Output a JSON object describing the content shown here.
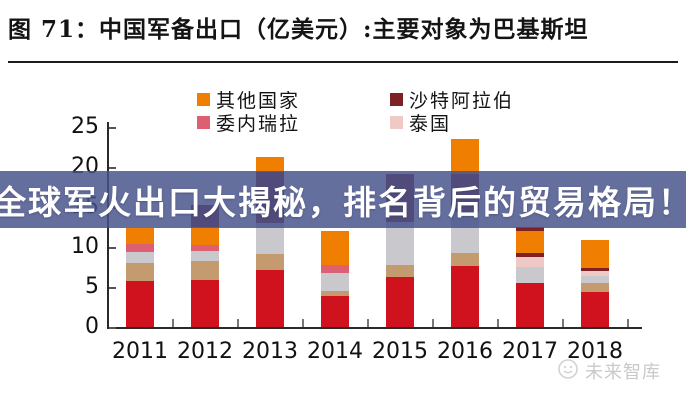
{
  "figure": {
    "title": "图 71：中国军备出口（亿美元）:主要对象为巴基斯坦"
  },
  "overlay": {
    "text": "全球军火出口大揭秘，排名背后的贸易格局！",
    "bg_color": "#48538B",
    "bg_opacity": 0.84,
    "text_color": "#FFFFFF"
  },
  "watermark": {
    "text": "未来智库",
    "color": "#C9C9C9",
    "logo_icon": "smiley-face-icon"
  },
  "chart_data": {
    "type": "bar",
    "stacked": true,
    "title": "中国军备出口（亿美元）",
    "xlabel": "",
    "ylabel": "",
    "ylim": [
      0,
      25
    ],
    "yticks": [
      0,
      5,
      10,
      15,
      20,
      25
    ],
    "grid": false,
    "legend_position": "top",
    "categories": [
      "2011",
      "2012",
      "2013",
      "2014",
      "2015",
      "2016",
      "2017",
      "2018"
    ],
    "colors": {
      "red": "#D0121E",
      "tan": "#C49B6E",
      "gray": "#C9C9CD",
      "rose": "#DD5F72",
      "lightpink": "#EFC9C5",
      "darkred": "#7D2125",
      "orange": "#F07E00"
    },
    "legend": [
      {
        "key": "orange",
        "label": "其他国家"
      },
      {
        "key": "darkred",
        "label": "沙特阿拉伯"
      },
      {
        "key": "rose",
        "label": "委内瑞拉"
      },
      {
        "key": "lightpink",
        "label": "泰国"
      }
    ],
    "bars": [
      {
        "year": "2011",
        "total": 12.4,
        "segments": [
          [
            "red",
            5.7
          ],
          [
            "tan",
            2.3
          ],
          [
            "gray",
            1.4
          ],
          [
            "rose",
            1.0
          ],
          [
            "orange",
            2.0
          ]
        ]
      },
      {
        "year": "2012",
        "total": 15.3,
        "segments": [
          [
            "red",
            5.9
          ],
          [
            "tan",
            2.3
          ],
          [
            "gray",
            1.3
          ],
          [
            "rose",
            0.8
          ],
          [
            "orange",
            2.2
          ],
          [
            "darkred",
            2.8
          ]
        ]
      },
      {
        "year": "2013",
        "total": 21.3,
        "segments": [
          [
            "red",
            7.1
          ],
          [
            "tan",
            2.0
          ],
          [
            "gray",
            3.9
          ],
          [
            "darkred",
            6.4
          ],
          [
            "orange",
            1.9
          ]
        ]
      },
      {
        "year": "2014",
        "total": 12.0,
        "segments": [
          [
            "red",
            3.9
          ],
          [
            "tan",
            0.6
          ],
          [
            "gray",
            2.3
          ],
          [
            "rose",
            1.0
          ],
          [
            "orange",
            4.2
          ]
        ]
      },
      {
        "year": "2015",
        "total": 19.1,
        "segments": [
          [
            "red",
            6.2
          ],
          [
            "tan",
            1.6
          ],
          [
            "gray",
            5.3
          ],
          [
            "darkred",
            6.0
          ]
        ]
      },
      {
        "year": "2016",
        "total": 23.5,
        "segments": [
          [
            "red",
            7.6
          ],
          [
            "tan",
            1.6
          ],
          [
            "gray",
            5.2
          ],
          [
            "darkred",
            4.7
          ],
          [
            "orange",
            4.4
          ]
        ]
      },
      {
        "year": "2017",
        "total": 12.5,
        "segments": [
          [
            "red",
            5.5
          ],
          [
            "gray",
            2.0
          ],
          [
            "lightpink",
            1.3
          ],
          [
            "darkred",
            0.4
          ],
          [
            "orange",
            2.8
          ],
          [
            "darkred",
            0.5
          ]
        ]
      },
      {
        "year": "2018",
        "total": 10.9,
        "segments": [
          [
            "red",
            4.4
          ],
          [
            "tan",
            1.1
          ],
          [
            "gray",
            0.9
          ],
          [
            "lightpink",
            0.6
          ],
          [
            "darkred",
            0.4
          ],
          [
            "orange",
            3.5
          ]
        ]
      }
    ],
    "series": [
      {
        "key": "red",
        "label": null,
        "values": [
          5.7,
          5.9,
          7.1,
          3.9,
          6.2,
          7.6,
          5.5,
          4.4
        ]
      },
      {
        "key": "tan",
        "label": null,
        "values": [
          2.3,
          2.3,
          2.0,
          0.6,
          1.6,
          1.6,
          0,
          1.1
        ]
      },
      {
        "key": "gray",
        "label": null,
        "values": [
          1.4,
          1.3,
          3.9,
          2.3,
          5.3,
          5.2,
          2.0,
          0.9
        ]
      },
      {
        "key": "rose",
        "label": "委内瑞拉",
        "values": [
          1.0,
          0.8,
          0,
          1.0,
          0,
          0,
          0,
          0
        ]
      },
      {
        "key": "lightpink",
        "label": "泰国",
        "values": [
          0,
          0,
          0,
          0,
          0,
          0,
          1.3,
          0.6
        ]
      },
      {
        "key": "darkred",
        "label": "沙特阿拉伯",
        "values": [
          0,
          2.8,
          6.4,
          0,
          6.0,
          4.7,
          0.9,
          0.4
        ]
      },
      {
        "key": "orange",
        "label": "其他国家",
        "values": [
          2.0,
          2.2,
          1.9,
          4.2,
          0,
          4.4,
          2.8,
          3.5
        ]
      }
    ]
  }
}
